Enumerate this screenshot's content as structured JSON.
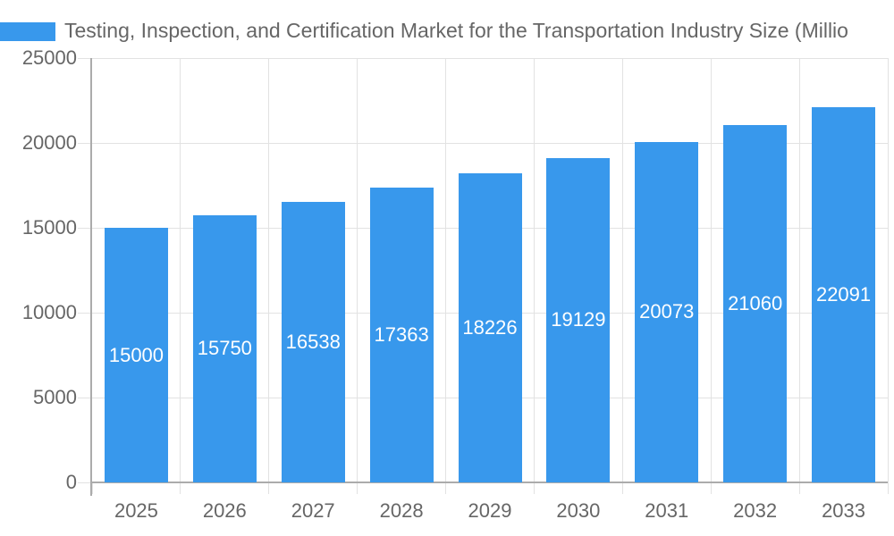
{
  "chart_data": {
    "type": "bar",
    "title": "Testing, Inspection, and Certification Market for the Transportation Industry Size (Millio",
    "categories": [
      "2025",
      "2026",
      "2027",
      "2028",
      "2029",
      "2030",
      "2031",
      "2032",
      "2033"
    ],
    "values": [
      15000,
      15750,
      16538,
      17363,
      18226,
      19129,
      20073,
      21060,
      22091
    ],
    "xlabel": "",
    "ylabel": "",
    "ylim": [
      0,
      25000
    ],
    "yticks": [
      0,
      5000,
      10000,
      15000,
      20000,
      25000
    ],
    "grid": true,
    "legend_position": "top-left",
    "colors": {
      "bar": "#3898EC",
      "value_label": "#FFFFFF",
      "axis_text": "#666666",
      "grid": "#E2E2E2",
      "axis_line": "#ABABAB"
    }
  }
}
